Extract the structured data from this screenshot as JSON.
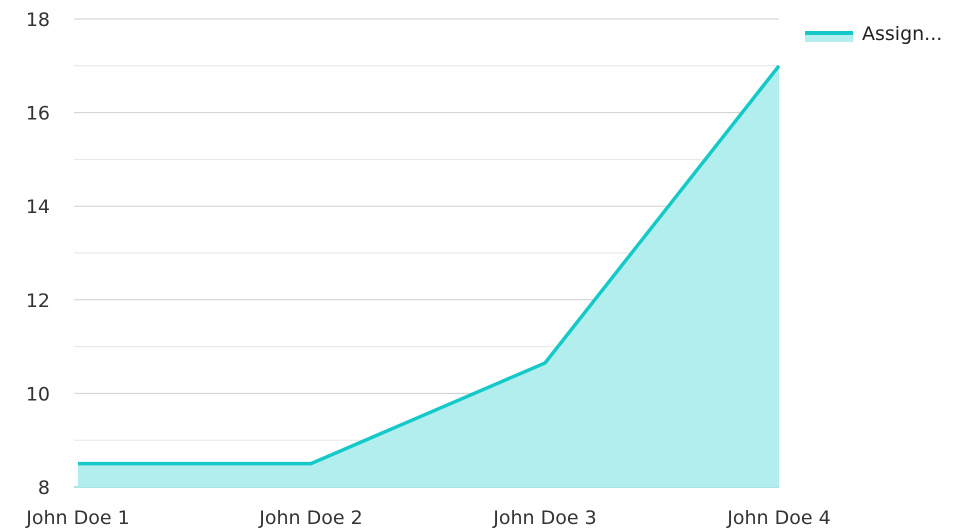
{
  "chart_data": {
    "type": "area",
    "title": "",
    "xlabel": "",
    "ylabel": "",
    "categories": [
      "John Doe 1",
      "John Doe 2",
      "John Doe 3",
      "John Doe 4"
    ],
    "series": [
      {
        "name": "Assign...",
        "values": [
          8.5,
          8.5,
          10.65,
          17.0
        ],
        "line_color": "#16C9C9",
        "fill_color": "#B2EEEE"
      }
    ],
    "ylim": [
      8,
      18
    ],
    "y_ticks": [
      8,
      10,
      12,
      14,
      16,
      18
    ],
    "y_tick_labels": [
      "8",
      "10",
      "12",
      "14",
      "16",
      "18"
    ],
    "grid": true,
    "legend_position": "top-right"
  }
}
